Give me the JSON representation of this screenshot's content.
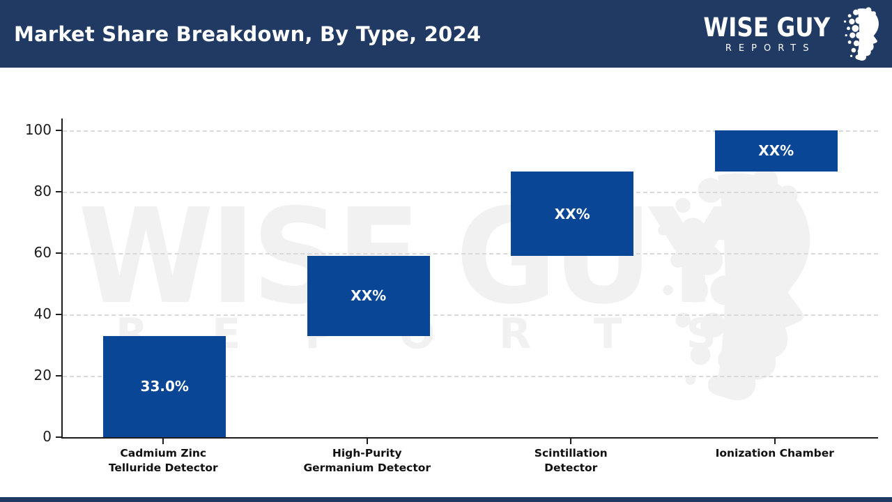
{
  "header": {
    "title": "Market Share Breakdown, By Type, 2024",
    "logo": {
      "line1": "WISE GUY",
      "line2": "REPORTS"
    }
  },
  "watermark": {
    "line1": "WISE GUY",
    "line2": "REPORTS"
  },
  "colors": {
    "header_bg": "#203a64",
    "footer_bg": "#203a64",
    "bar": "#0a4696",
    "grid": "#d9d9d9",
    "axis": "#1c1c1c",
    "bar_label": "#ffffff",
    "watermark": "#f1f1f2"
  },
  "chart_data": {
    "type": "bar",
    "variant": "floating-waterfall",
    "title": "Market Share Breakdown, By Type, 2024",
    "categories": [
      [
        "Cadmium Zinc",
        "Telluride Detector"
      ],
      [
        "High-Purity",
        "Germanium Detector"
      ],
      [
        "Scintillation",
        "Detector"
      ],
      [
        "Ionization Chamber"
      ]
    ],
    "bars": [
      {
        "start": 0,
        "end": 33,
        "label": "33.0%"
      },
      {
        "start": 33,
        "end": 59,
        "label": "XX%"
      },
      {
        "start": 59,
        "end": 86.5,
        "label": "XX%"
      },
      {
        "start": 86.5,
        "end": 100,
        "label": "XX%"
      }
    ],
    "yticks": [
      0,
      20,
      40,
      60,
      80,
      100
    ],
    "ylim": [
      0,
      103.8
    ],
    "xlabel": "",
    "ylabel": "",
    "grid": "horizontal-dashed",
    "legend": "none"
  }
}
